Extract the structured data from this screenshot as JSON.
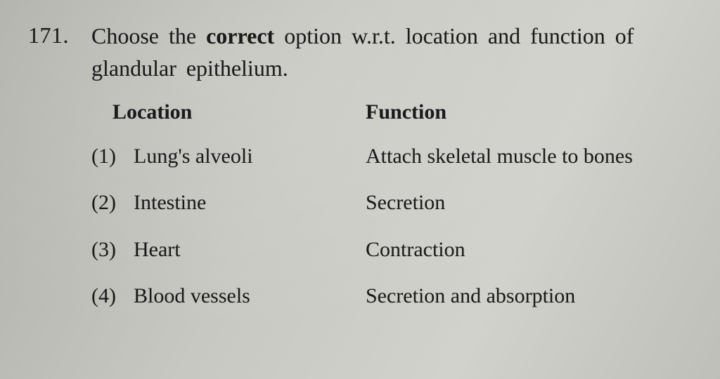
{
  "question": {
    "number": "171.",
    "text_pre": "Choose the ",
    "text_bold": "correct",
    "text_mid": " option w.r.t. location and function of glandular epithelium."
  },
  "headers": {
    "col1": "Location",
    "col2": "Function"
  },
  "options": [
    {
      "marker": "(1)",
      "location": "Lung's alveoli",
      "function": "Attach skeletal muscle to bones"
    },
    {
      "marker": "(2)",
      "location": "Intestine",
      "function": "Secretion"
    },
    {
      "marker": "(3)",
      "location": "Heart",
      "function": "Contraction"
    },
    {
      "marker": "(4)",
      "location": "Blood vessels",
      "function": "Secretion and absorption"
    }
  ],
  "style": {
    "base_font_size_pt": 24,
    "heading_weight": 700,
    "text_color": "#1a1a1a",
    "paper_bg_from": "#b0b0aa",
    "paper_bg_to": "#d2d2cc"
  }
}
